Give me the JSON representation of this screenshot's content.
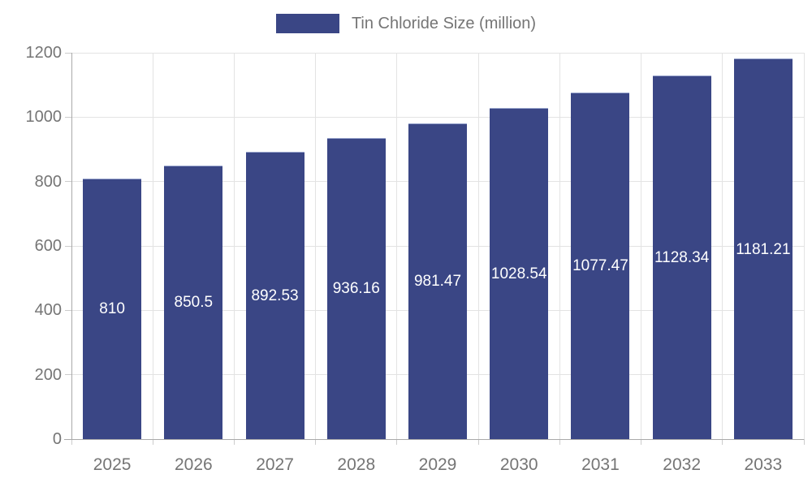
{
  "legend": {
    "label": "Tin Chloride Size (million)"
  },
  "chart_data": {
    "type": "bar",
    "title": "",
    "legend_entries": [
      "Tin Chloride Size (million)"
    ],
    "legend_position": "top-center",
    "categories": [
      "2025",
      "2026",
      "2027",
      "2028",
      "2029",
      "2030",
      "2031",
      "2032",
      "2033"
    ],
    "series": [
      {
        "name": "Tin Chloride Size (million)",
        "values": [
          810,
          850.5,
          892.53,
          936.16,
          981.47,
          1028.54,
          1077.47,
          1128.34,
          1181.21
        ],
        "value_labels": [
          "810",
          "850.5",
          "892.53",
          "936.16",
          "981.47",
          "1028.54",
          "1077.47",
          "1128.34",
          "1181.21"
        ]
      }
    ],
    "xlabel": "",
    "ylabel": "",
    "ylim": [
      0,
      1200
    ],
    "y_ticks": [
      0,
      200,
      400,
      600,
      800,
      1000,
      1200
    ],
    "grid": true,
    "colors": {
      "bar": "#3A4685",
      "bar_edge": "#9AA6CE",
      "grid_line": "#E3E3E3",
      "axis_line": "#AAAAAA",
      "tick_mark": "#CCCCCC",
      "axis_text": "#757575",
      "value_text": "#FFFFFF",
      "legend_text": "#757575",
      "background": "#FFFFFF"
    }
  }
}
